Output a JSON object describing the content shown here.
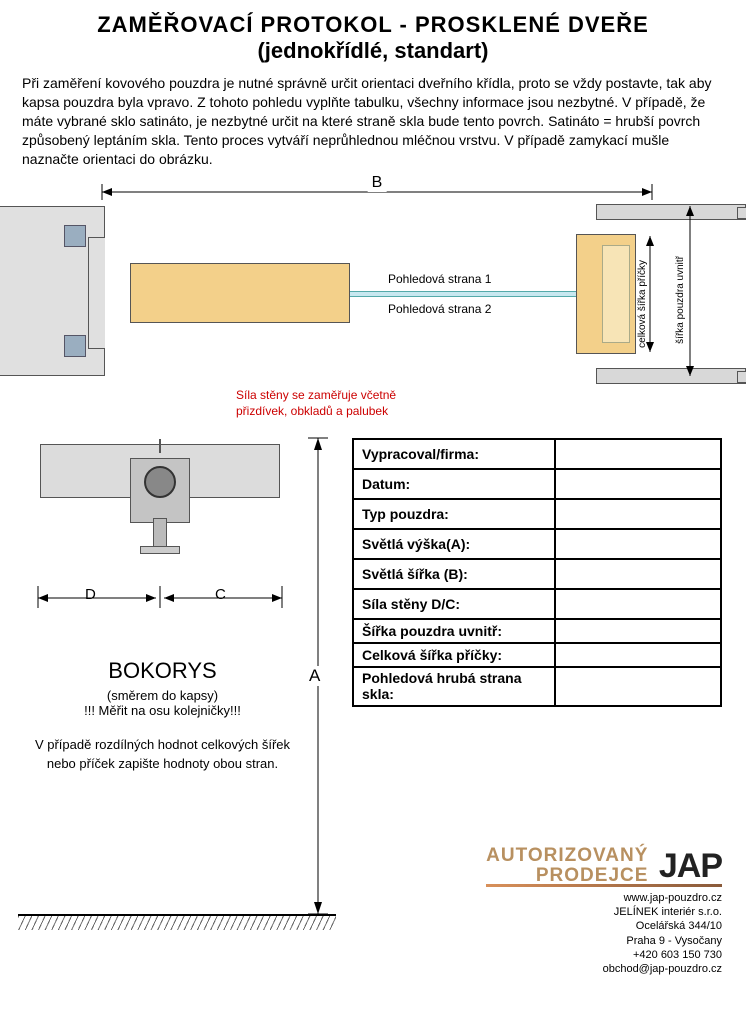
{
  "title": {
    "line1": "ZAMĚŘOVACÍ PROTOKOL - PROSKLENÉ DVEŘE",
    "line2": "(jednokřídlé, standart)"
  },
  "intro": "Při zaměření kovového pouzdra je nutné správně určit orientaci dveřního křídla, proto se vždy postavte, tak aby kapsa pouzdra byla vpravo. Z tohoto pohledu vyplňte tabulku, všechny informace jsou nezbytné. V případě, že máte vybrané sklo satináto, je nezbytné určit na které straně skla bude tento povrch. Satináto = hrubší povrch způsobený leptáním skla. Tento proces vytváří neprůhlednou mléčnou vrstvu. V případě zamykací mušle naznačte orientaci do obrázku.",
  "diagram": {
    "dim_b": "B",
    "view1": "Pohledová strana 1",
    "view2": "Pohledová strana 2",
    "vertical1": "celková\nšířka příčky",
    "vertical2": "šířka\npouzdra uvnitř",
    "red_note_l1": "Síla stěny se zaměřuje včetně",
    "red_note_l2": "přizdívek, obkladů a palubek",
    "dim_d": "D",
    "dim_c": "C",
    "dim_a": "A"
  },
  "bokorys": {
    "title": "BOKORYS",
    "sub": "(směrem do kapsy)",
    "warn": "!!! Měřit na osu kolejničky!!!",
    "note": "V případě rozdílných hodnot celkových šířek nebo příček zapište hodnoty obou stran."
  },
  "form": {
    "rows": [
      {
        "label": "Vypracoval/firma:",
        "value": ""
      },
      {
        "label": "Datum:",
        "value": ""
      },
      {
        "label": "Typ pouzdra:",
        "value": ""
      },
      {
        "label": "Světlá výška(A):",
        "value": ""
      },
      {
        "label": "Světlá šířka (B):",
        "value": ""
      },
      {
        "label": "Síla stěny D/C:",
        "value": ""
      },
      {
        "label": "Šířka pouzdra uvnitř:",
        "value": ""
      },
      {
        "label": "Celková šířka příčky:",
        "value": ""
      },
      {
        "label": "Pohledová hrubá strana skla:",
        "value": ""
      }
    ]
  },
  "dealer": {
    "badge_l1": "AUTORIZOVANÝ",
    "badge_l2": "PRODEJCE",
    "logo": "JAP",
    "web": "www.jap-pouzdro.cz",
    "company": "JELÍNEK interiér s.r.o.",
    "street": "Ocelářská 344/10",
    "city": "Praha 9 - Vysočany",
    "phone": "+420 603 150 730",
    "email": "obchod@jap-pouzdro.cz"
  },
  "colors": {
    "wood": "#f3d08a",
    "wall": "#e0e0e0",
    "red": "#cc0000",
    "badge": "#b89060"
  }
}
